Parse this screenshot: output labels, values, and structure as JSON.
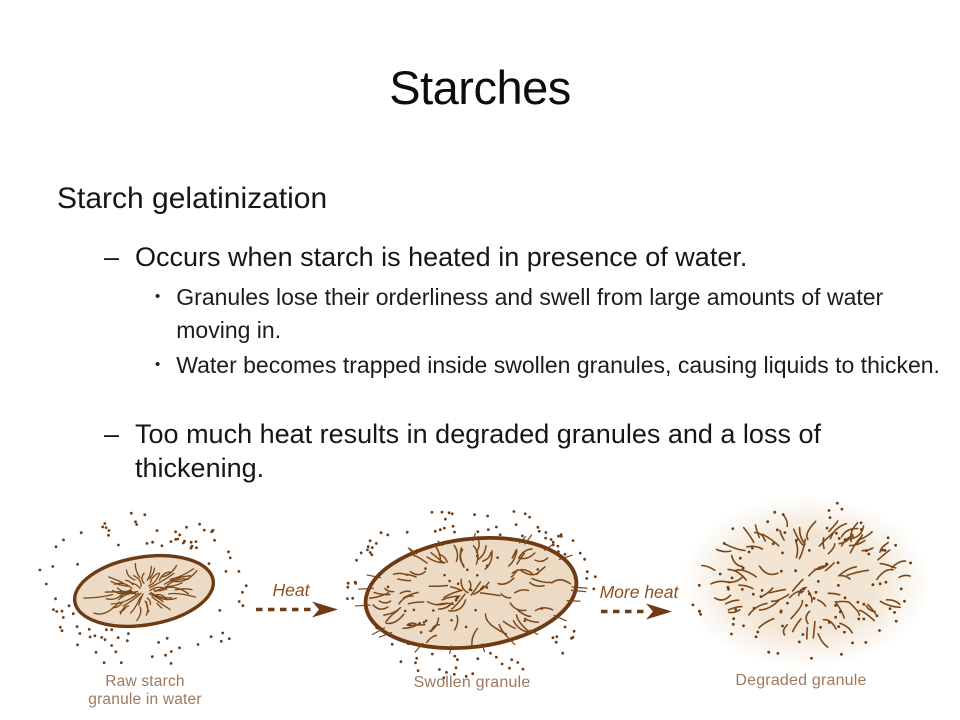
{
  "slide": {
    "title": "Starches"
  },
  "body": {
    "heading": "Starch gelatinization",
    "bullets": [
      {
        "level": 2,
        "marker": "–",
        "text": "Occurs when starch is heated in presence of water."
      },
      {
        "level": 3,
        "marker": "•",
        "text": "Granules lose their orderliness and swell from large amounts of water moving in."
      },
      {
        "level": 3,
        "marker": "•",
        "text": "Water becomes trapped inside swollen granules, causing liquids to thicken."
      },
      {
        "level": 2,
        "marker": "–",
        "text": "Too much heat results in degraded granules and a loss of thickening."
      }
    ]
  },
  "diagram": {
    "stages": [
      {
        "label_line1": "Raw starch",
        "label_line2": "granule in water"
      },
      {
        "label_line1": "Swollen granule",
        "label_line2": ""
      },
      {
        "label_line1": "Degraded granule",
        "label_line2": ""
      }
    ],
    "arrows": [
      {
        "label": "Heat"
      },
      {
        "label": "More heat"
      }
    ]
  },
  "colors": {
    "background": "#ffffff",
    "text": "#1a1a1a",
    "diagram_ink": "#6e3a14",
    "fiber_ink": "#7b4718",
    "granule_fill": "#ecdac4",
    "glow_fill": "#f2e5d3",
    "label_brown": "#a1775a",
    "heat_brown": "#8a5126"
  }
}
